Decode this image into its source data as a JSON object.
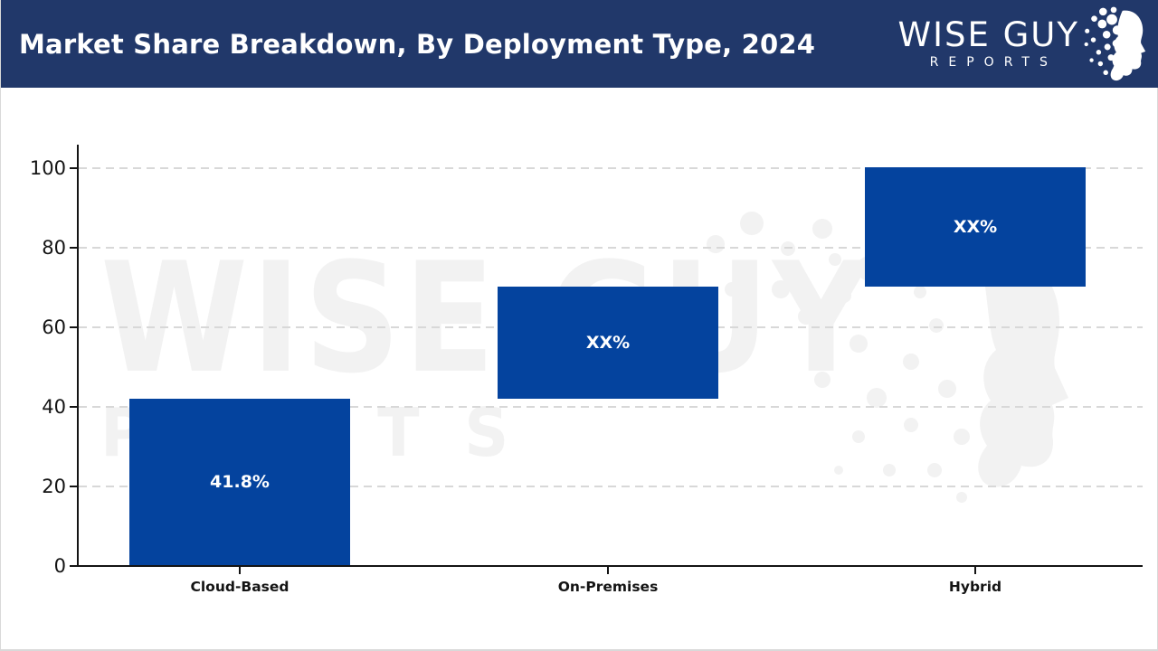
{
  "page": {
    "background": "#ffffff",
    "border_color": "#d9d9d9"
  },
  "header": {
    "background": "#21386A",
    "title": "Market Share Breakdown, By Deployment Type, 2024",
    "logo": {
      "wordmark": "WISE GUY",
      "sub": "REPORTS",
      "head_icon": "dotted-face-profile"
    }
  },
  "watermark": {
    "wordmark": "WISE GUY",
    "sub": "PORTS",
    "head_icon": "dotted-face-profile"
  },
  "chart_data": {
    "type": "bar",
    "variant": "cumulative-segment-waterfall",
    "title": "Market Share Breakdown, By Deployment Type, 2024",
    "categories": [
      "Cloud-Based",
      "On-Premises",
      "Hybrid"
    ],
    "bars": [
      {
        "category": "Cloud-Based",
        "label": "41.8%",
        "start": 0,
        "end": 41.8
      },
      {
        "category": "On-Premises",
        "label": "XX%",
        "start": 41.8,
        "end": 70
      },
      {
        "category": "Hybrid",
        "label": "XX%",
        "start": 70,
        "end": 100
      }
    ],
    "ylim": [
      0,
      100
    ],
    "yticks": [
      0,
      20,
      40,
      60,
      80,
      100
    ],
    "xlabel": "",
    "ylabel": "",
    "bar_color": "#04439E",
    "bar_label_color": "#ffffff",
    "axis_color": "#141414",
    "grid": {
      "horizontal": true,
      "style": "dashed",
      "color": "#d8d8d8"
    },
    "legend": "none"
  }
}
